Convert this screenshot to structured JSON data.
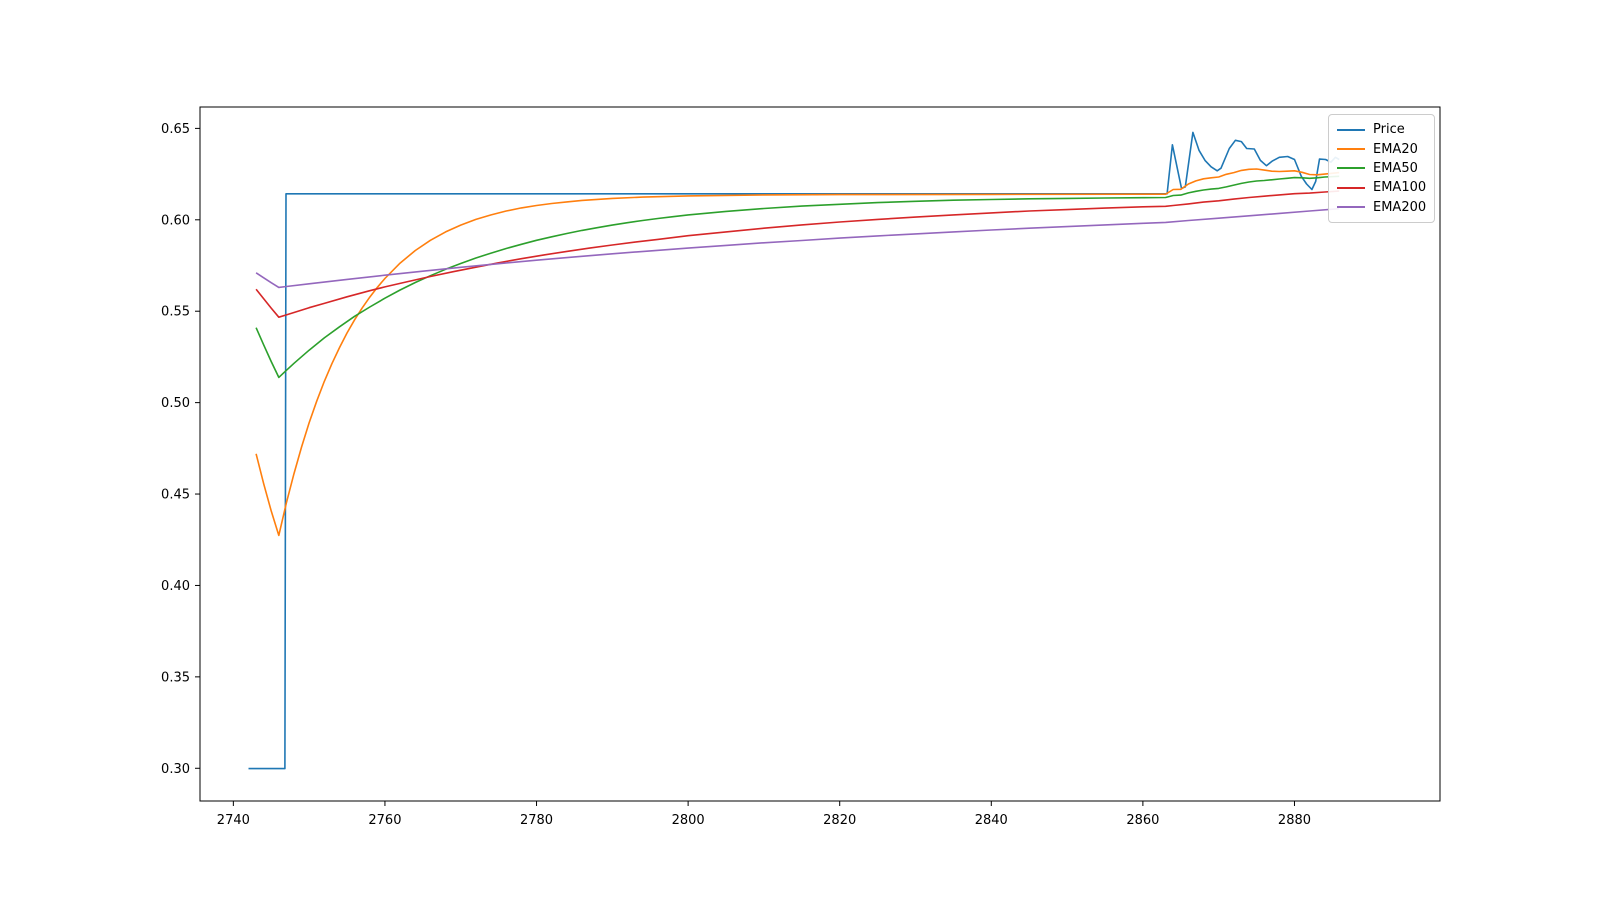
{
  "chart_data": {
    "type": "line",
    "title": "",
    "xlabel": "",
    "ylabel": "",
    "grid": false,
    "legend_position": "upper-right",
    "xlim": [
      2735.6,
      2899.2
    ],
    "ylim": [
      0.2821,
      0.6617
    ],
    "xticks": [
      2740,
      2760,
      2780,
      2800,
      2820,
      2840,
      2860,
      2880
    ],
    "xtick_labels": [
      "2740",
      "2760",
      "2780",
      "2800",
      "2820",
      "2840",
      "2860",
      "2880"
    ],
    "yticks": [
      0.3,
      0.35,
      0.4,
      0.45,
      0.5,
      0.55,
      0.6,
      0.65
    ],
    "ytick_labels": [
      "0.30",
      "0.35",
      "0.40",
      "0.45",
      "0.50",
      "0.55",
      "0.60",
      "0.65"
    ],
    "axis_color": "#000000",
    "series": [
      {
        "name": "Price",
        "color": "#1f77b4",
        "points": [
          [
            2742.0,
            0.2998
          ],
          [
            2746.8,
            0.2998
          ],
          [
            2746.95,
            0.6142
          ],
          [
            2863.2,
            0.6142
          ],
          [
            2863.9,
            0.641
          ],
          [
            2865.1,
            0.6172
          ],
          [
            2865.6,
            0.618
          ],
          [
            2866.6,
            0.6478
          ],
          [
            2867.4,
            0.638
          ],
          [
            2868.2,
            0.6325
          ],
          [
            2869.0,
            0.629
          ],
          [
            2869.8,
            0.6268
          ],
          [
            2870.3,
            0.6282
          ],
          [
            2871.4,
            0.639
          ],
          [
            2872.2,
            0.6435
          ],
          [
            2873.0,
            0.6428
          ],
          [
            2873.7,
            0.639
          ],
          [
            2874.7,
            0.6387
          ],
          [
            2875.5,
            0.6325
          ],
          [
            2876.3,
            0.6296
          ],
          [
            2877.1,
            0.6322
          ],
          [
            2878.0,
            0.6342
          ],
          [
            2879.1,
            0.6346
          ],
          [
            2880.0,
            0.633
          ],
          [
            2880.9,
            0.6238
          ],
          [
            2881.6,
            0.6196
          ],
          [
            2882.3,
            0.6166
          ],
          [
            2882.8,
            0.621
          ],
          [
            2883.3,
            0.6332
          ],
          [
            2884.1,
            0.633
          ],
          [
            2884.8,
            0.6315
          ],
          [
            2885.4,
            0.6342
          ],
          [
            2885.9,
            0.633
          ]
        ]
      },
      {
        "name": "EMA20",
        "color": "#ff7f0e",
        "points": [
          [
            2743,
            0.472
          ],
          [
            2744,
            0.4556
          ],
          [
            2745,
            0.4408
          ],
          [
            2746,
            0.4274
          ],
          [
            2747,
            0.4452
          ],
          [
            2748,
            0.4612
          ],
          [
            2749,
            0.4758
          ],
          [
            2750,
            0.4889
          ],
          [
            2751,
            0.5008
          ],
          [
            2752,
            0.5116
          ],
          [
            2753,
            0.5213
          ],
          [
            2754,
            0.5301
          ],
          [
            2755,
            0.5381
          ],
          [
            2756,
            0.5453
          ],
          [
            2757,
            0.5518
          ],
          [
            2758,
            0.5577
          ],
          [
            2759,
            0.5631
          ],
          [
            2760,
            0.5679
          ],
          [
            2762,
            0.5763
          ],
          [
            2764,
            0.5832
          ],
          [
            2766,
            0.5888
          ],
          [
            2768,
            0.5934
          ],
          [
            2770,
            0.5971
          ],
          [
            2772,
            0.6002
          ],
          [
            2774,
            0.6027
          ],
          [
            2776,
            0.6048
          ],
          [
            2778,
            0.6065
          ],
          [
            2780,
            0.6078
          ],
          [
            2782,
            0.6089
          ],
          [
            2784,
            0.6098
          ],
          [
            2786,
            0.6106
          ],
          [
            2790,
            0.6117
          ],
          [
            2794,
            0.6124
          ],
          [
            2800,
            0.6131
          ],
          [
            2810,
            0.6136
          ],
          [
            2820,
            0.6138
          ],
          [
            2840,
            0.6139
          ],
          [
            2863,
            0.614
          ],
          [
            2864,
            0.6166
          ],
          [
            2865,
            0.6167
          ],
          [
            2866,
            0.6196
          ],
          [
            2867,
            0.6213
          ],
          [
            2868,
            0.6224
          ],
          [
            2869,
            0.623
          ],
          [
            2870,
            0.6234
          ],
          [
            2871,
            0.6249
          ],
          [
            2872,
            0.6258
          ],
          [
            2873,
            0.627
          ],
          [
            2874,
            0.6276
          ],
          [
            2875,
            0.6278
          ],
          [
            2876,
            0.6272
          ],
          [
            2877,
            0.6266
          ],
          [
            2878,
            0.6264
          ],
          [
            2879,
            0.6266
          ],
          [
            2880,
            0.6268
          ],
          [
            2881,
            0.626
          ],
          [
            2882,
            0.6248
          ],
          [
            2883,
            0.6246
          ],
          [
            2884,
            0.625
          ],
          [
            2885.9,
            0.6258
          ]
        ]
      },
      {
        "name": "EMA50",
        "color": "#2ca02c",
        "points": [
          [
            2743,
            0.541
          ],
          [
            2744,
            0.5316
          ],
          [
            2745,
            0.5225
          ],
          [
            2746,
            0.5138
          ],
          [
            2747,
            0.5177
          ],
          [
            2748,
            0.5215
          ],
          [
            2749,
            0.5251
          ],
          [
            2750,
            0.5287
          ],
          [
            2752,
            0.5354
          ],
          [
            2754,
            0.5415
          ],
          [
            2756,
            0.5472
          ],
          [
            2758,
            0.5523
          ],
          [
            2760,
            0.5571
          ],
          [
            2762,
            0.5616
          ],
          [
            2764,
            0.5657
          ],
          [
            2766,
            0.5694
          ],
          [
            2768,
            0.5729
          ],
          [
            2770,
            0.5761
          ],
          [
            2772,
            0.5791
          ],
          [
            2774,
            0.5818
          ],
          [
            2776,
            0.5843
          ],
          [
            2778,
            0.5866
          ],
          [
            2780,
            0.5888
          ],
          [
            2782,
            0.5907
          ],
          [
            2784,
            0.5925
          ],
          [
            2786,
            0.5942
          ],
          [
            2788,
            0.5957
          ],
          [
            2790,
            0.5971
          ],
          [
            2792,
            0.5984
          ],
          [
            2794,
            0.5996
          ],
          [
            2796,
            0.6007
          ],
          [
            2798,
            0.6017
          ],
          [
            2800,
            0.6027
          ],
          [
            2805,
            0.6046
          ],
          [
            2810,
            0.6062
          ],
          [
            2815,
            0.6075
          ],
          [
            2820,
            0.6085
          ],
          [
            2825,
            0.6094
          ],
          [
            2830,
            0.6101
          ],
          [
            2835,
            0.6107
          ],
          [
            2840,
            0.6111
          ],
          [
            2845,
            0.6115
          ],
          [
            2850,
            0.6117
          ],
          [
            2855,
            0.6119
          ],
          [
            2860,
            0.6121
          ],
          [
            2863,
            0.6122
          ],
          [
            2864,
            0.6133
          ],
          [
            2865,
            0.6135
          ],
          [
            2866,
            0.6147
          ],
          [
            2867,
            0.6156
          ],
          [
            2868,
            0.6163
          ],
          [
            2869,
            0.6168
          ],
          [
            2870,
            0.6172
          ],
          [
            2871,
            0.618
          ],
          [
            2872,
            0.619
          ],
          [
            2873,
            0.6199
          ],
          [
            2874,
            0.6207
          ],
          [
            2875,
            0.6212
          ],
          [
            2876,
            0.6215
          ],
          [
            2877,
            0.6219
          ],
          [
            2878,
            0.6223
          ],
          [
            2879,
            0.6227
          ],
          [
            2880,
            0.6231
          ],
          [
            2881,
            0.623
          ],
          [
            2882,
            0.6227
          ],
          [
            2883,
            0.623
          ],
          [
            2884,
            0.6234
          ],
          [
            2885.9,
            0.6238
          ]
        ]
      },
      {
        "name": "EMA100",
        "color": "#d62728",
        "points": [
          [
            2743,
            0.562
          ],
          [
            2744,
            0.5568
          ],
          [
            2745,
            0.5517
          ],
          [
            2746,
            0.5467
          ],
          [
            2747,
            0.548
          ],
          [
            2748,
            0.5493
          ],
          [
            2750,
            0.5519
          ],
          [
            2752,
            0.5543
          ],
          [
            2755,
            0.5579
          ],
          [
            2758,
            0.5612
          ],
          [
            2760,
            0.5633
          ],
          [
            2763,
            0.5662
          ],
          [
            2766,
            0.569
          ],
          [
            2769,
            0.5716
          ],
          [
            2772,
            0.5741
          ],
          [
            2775,
            0.5765
          ],
          [
            2778,
            0.5787
          ],
          [
            2781,
            0.5808
          ],
          [
            2784,
            0.5827
          ],
          [
            2787,
            0.5845
          ],
          [
            2790,
            0.5862
          ],
          [
            2793,
            0.5878
          ],
          [
            2796,
            0.5893
          ],
          [
            2800,
            0.5913
          ],
          [
            2805,
            0.5934
          ],
          [
            2810,
            0.5954
          ],
          [
            2815,
            0.5972
          ],
          [
            2820,
            0.5988
          ],
          [
            2825,
            0.6002
          ],
          [
            2830,
            0.6015
          ],
          [
            2835,
            0.6027
          ],
          [
            2840,
            0.6038
          ],
          [
            2845,
            0.6048
          ],
          [
            2850,
            0.6056
          ],
          [
            2855,
            0.6064
          ],
          [
            2860,
            0.6071
          ],
          [
            2863,
            0.6074
          ],
          [
            2864,
            0.6078
          ],
          [
            2866,
            0.6087
          ],
          [
            2868,
            0.6097
          ],
          [
            2870,
            0.6104
          ],
          [
            2872,
            0.6113
          ],
          [
            2874,
            0.6122
          ],
          [
            2876,
            0.6129
          ],
          [
            2878,
            0.6136
          ],
          [
            2880,
            0.6143
          ],
          [
            2882,
            0.6146
          ],
          [
            2884,
            0.6152
          ],
          [
            2885.9,
            0.6157
          ]
        ]
      },
      {
        "name": "EMA200",
        "color": "#9467bd",
        "points": [
          [
            2743,
            0.571
          ],
          [
            2744,
            0.5683
          ],
          [
            2745,
            0.5656
          ],
          [
            2746,
            0.563
          ],
          [
            2747,
            0.5635
          ],
          [
            2750,
            0.565
          ],
          [
            2755,
            0.5674
          ],
          [
            2760,
            0.5697
          ],
          [
            2765,
            0.5719
          ],
          [
            2770,
            0.574
          ],
          [
            2775,
            0.576
          ],
          [
            2780,
            0.5779
          ],
          [
            2785,
            0.5797
          ],
          [
            2790,
            0.5814
          ],
          [
            2795,
            0.583
          ],
          [
            2800,
            0.5845
          ],
          [
            2805,
            0.586
          ],
          [
            2810,
            0.5874
          ],
          [
            2815,
            0.5887
          ],
          [
            2820,
            0.59
          ],
          [
            2825,
            0.5912
          ],
          [
            2830,
            0.5923
          ],
          [
            2835,
            0.5934
          ],
          [
            2840,
            0.5944
          ],
          [
            2845,
            0.5954
          ],
          [
            2850,
            0.5963
          ],
          [
            2855,
            0.5972
          ],
          [
            2860,
            0.5981
          ],
          [
            2863,
            0.5986
          ],
          [
            2866,
            0.5996
          ],
          [
            2870,
            0.6009
          ],
          [
            2874,
            0.6022
          ],
          [
            2878,
            0.6035
          ],
          [
            2882,
            0.6048
          ],
          [
            2885.9,
            0.6061
          ]
        ]
      }
    ]
  },
  "legend": {
    "entries": [
      "Price",
      "EMA20",
      "EMA50",
      "EMA100",
      "EMA200"
    ]
  }
}
